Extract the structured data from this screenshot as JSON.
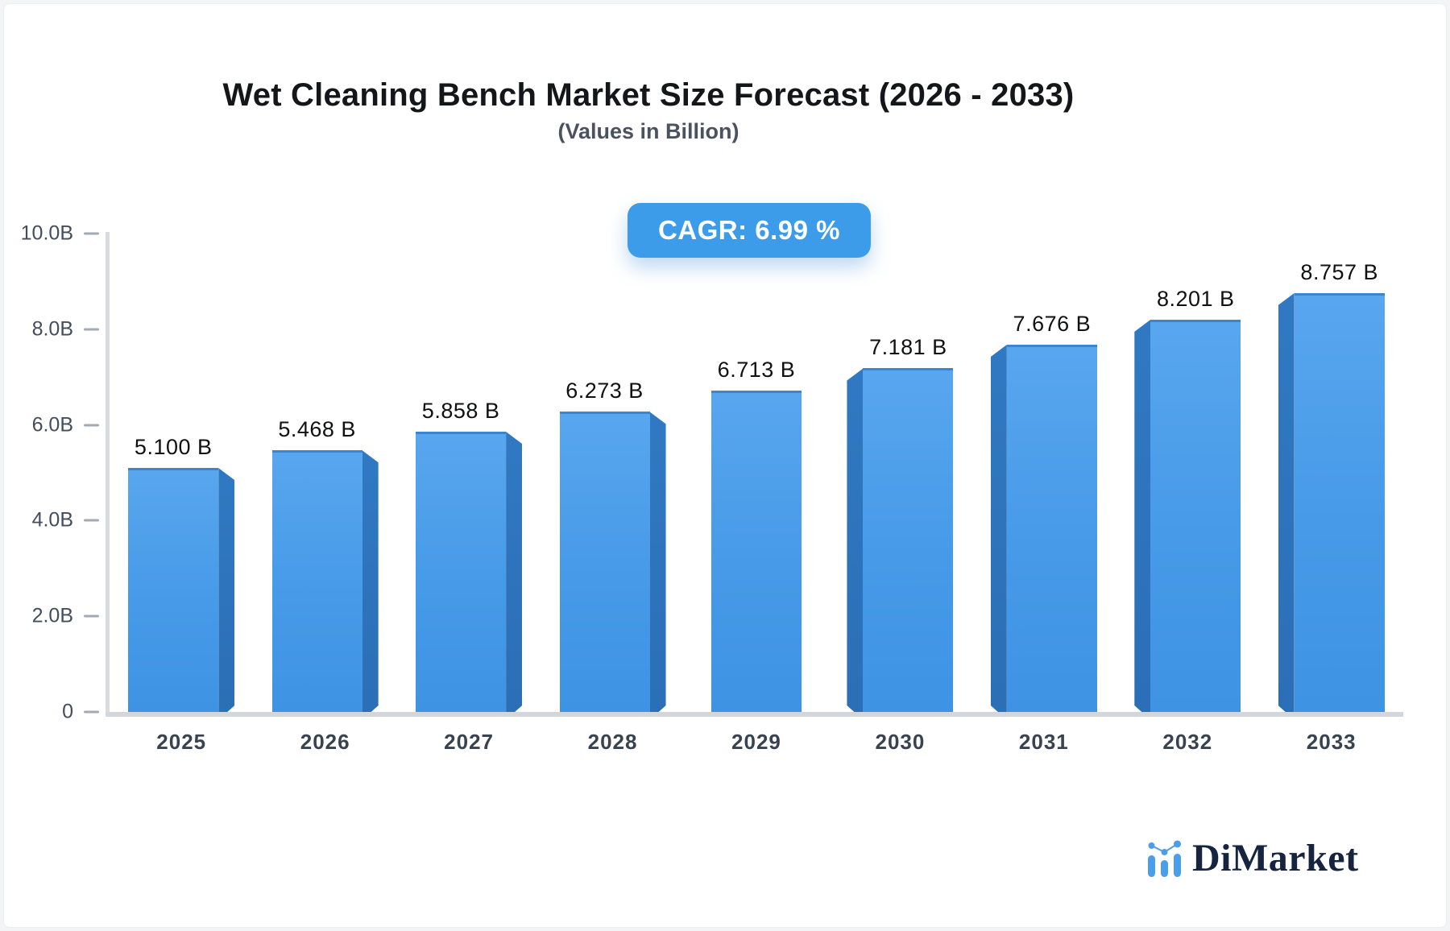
{
  "title": "Wet Cleaning Bench Market Size Forecast (2026 - 2033)",
  "subtitle": "(Values in Billion)",
  "badge": {
    "label": "CAGR: 6.99 %"
  },
  "brand": {
    "name": "DiMarket",
    "icon": "bar-chart-logo-icon",
    "icon_color": "#4a9eea",
    "text_color": "#162440"
  },
  "colors": {
    "bar_face": "#4a9eea",
    "bar_face_top_edge": "#3a86d3",
    "bar_side_shade": "#2d74bb",
    "badge_bg": "#3d9ce9",
    "axis_line": "#d5d8dc",
    "tick_text": "#434d5c",
    "value_text": "#101113"
  },
  "chart_data": {
    "type": "bar",
    "title": "Wet Cleaning Bench Market Size Forecast (2026 - 2033)",
    "subtitle": "(Values in Billion)",
    "xlabel": "",
    "ylabel": "",
    "categories": [
      "2025",
      "2026",
      "2027",
      "2028",
      "2029",
      "2030",
      "2031",
      "2032",
      "2033"
    ],
    "values": [
      5.1,
      5.468,
      5.858,
      6.273,
      6.713,
      7.181,
      7.676,
      8.201,
      8.757
    ],
    "value_labels": [
      "5.100 B",
      "5.468 B",
      "5.858 B",
      "6.273 B",
      "6.713 B",
      "7.181 B",
      "7.676 B",
      "8.201 B",
      "8.757 B"
    ],
    "unit": "Billion",
    "ylim": [
      0,
      10
    ],
    "ytick_values": [
      0,
      2,
      4,
      6,
      8,
      10
    ],
    "ytick_labels": [
      "0",
      "2.0B",
      "4.0B",
      "6.0B",
      "8.0B",
      "10.0B"
    ],
    "grid": "off",
    "legend": "none",
    "bevel_3d": {
      "left_bars": "shade-right",
      "center_bar": "flat",
      "right_bars": "shade-left"
    }
  }
}
